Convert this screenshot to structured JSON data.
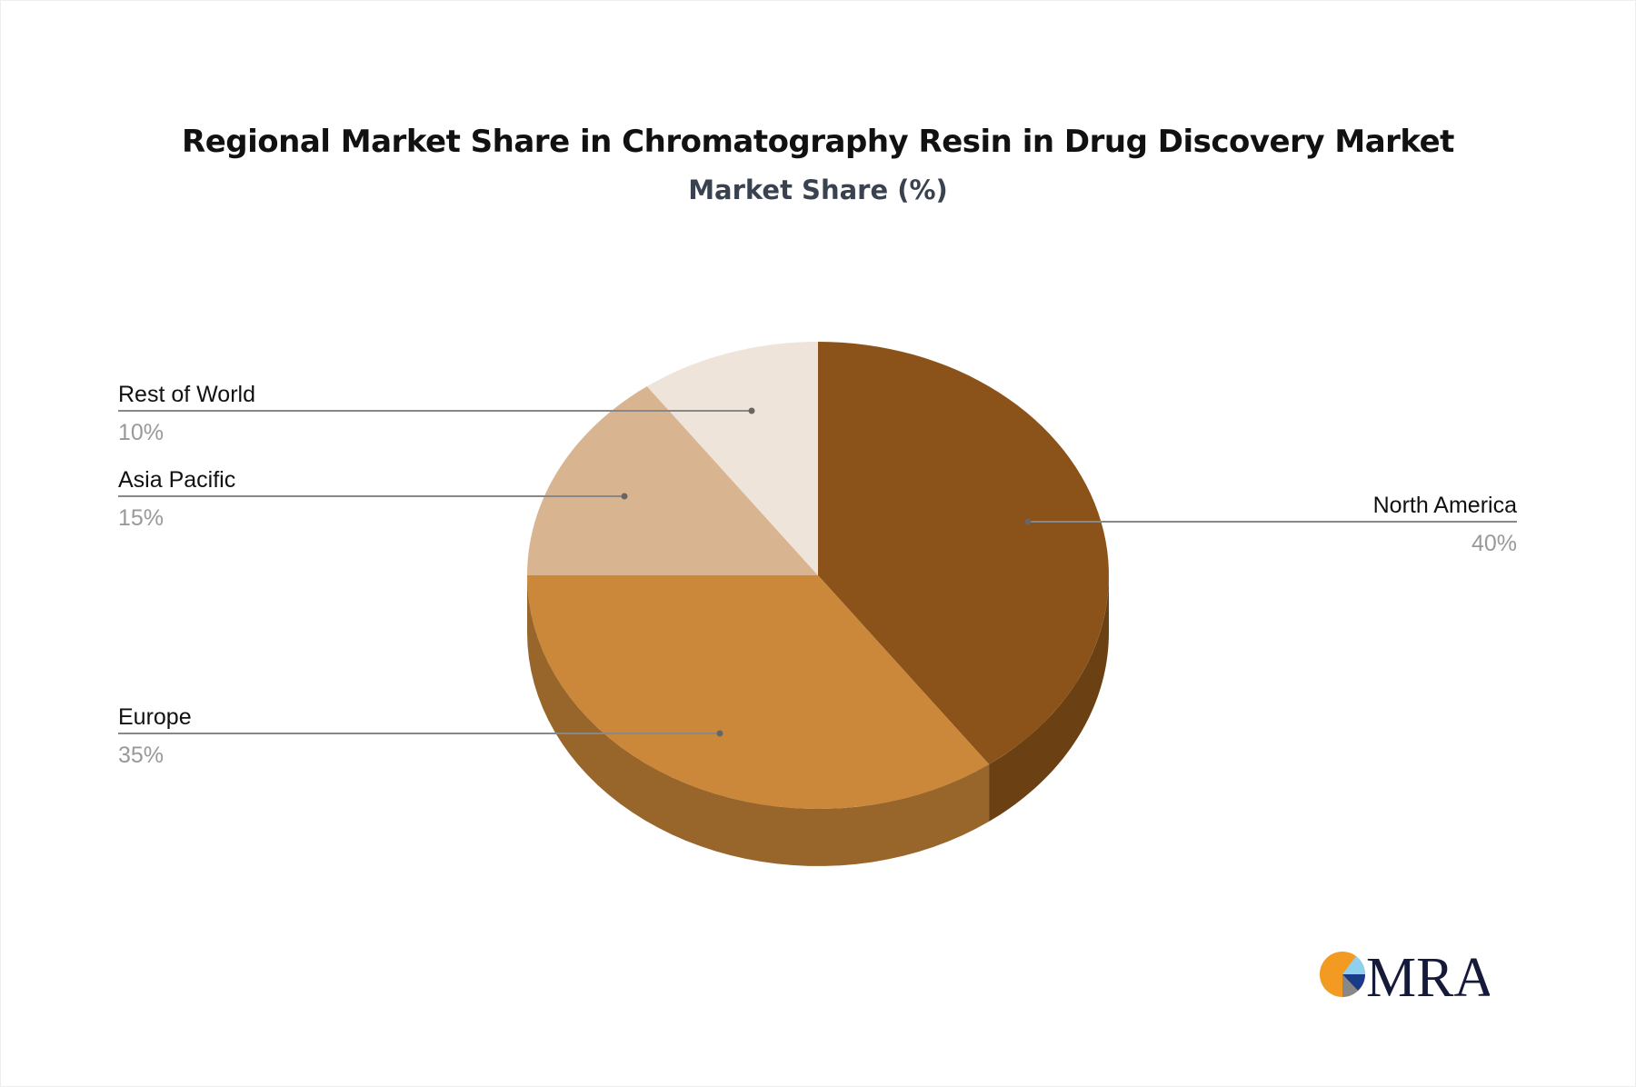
{
  "chart_data": {
    "type": "pie",
    "title": "Regional Market Share in Chromatography Resin in Drug Discovery Market",
    "subtitle": "Market Share (%)",
    "categories": [
      "North America",
      "Europe",
      "Asia Pacific",
      "Rest of World"
    ],
    "values": [
      40,
      35,
      15,
      10
    ],
    "labels": [
      "40%",
      "35%",
      "15%",
      "10%"
    ],
    "colors": [
      "#8b5319",
      "#cb883b",
      "#d8b590",
      "#efe4da"
    ],
    "side_colors": [
      "#6b4113",
      "#98652b",
      "#a88b6d",
      "#b8aea5"
    ],
    "style": "3d"
  },
  "logo": {
    "text": "MRA"
  }
}
